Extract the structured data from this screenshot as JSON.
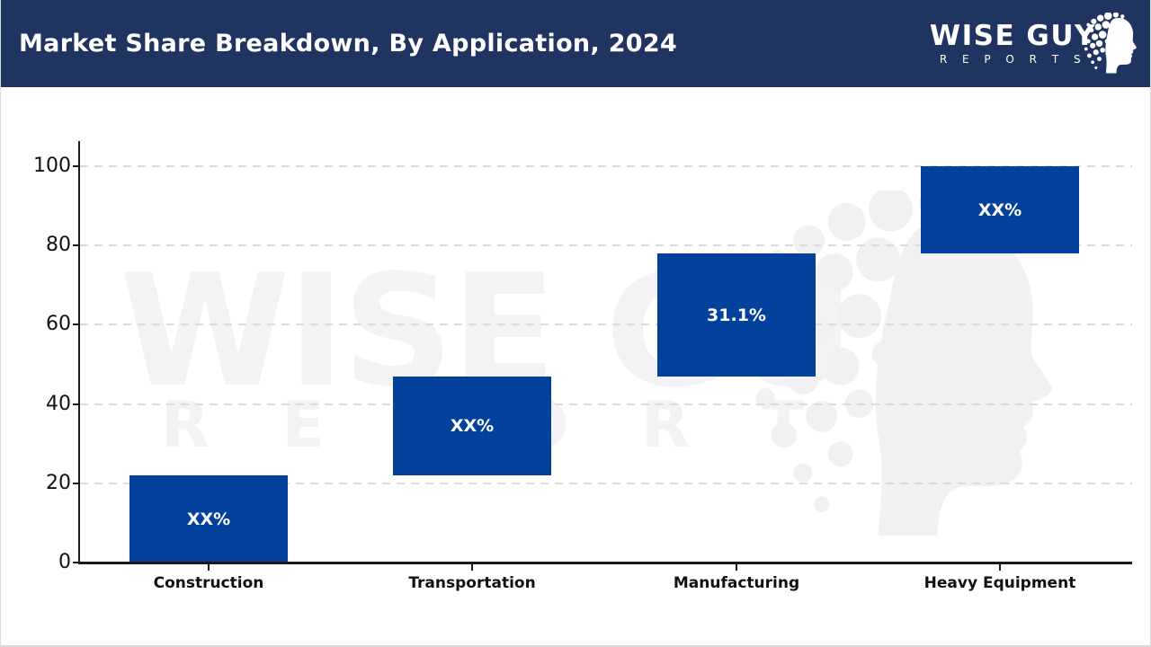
{
  "header": {
    "title": "Market Share Breakdown, By Application, 2024",
    "bg_color": "#1f3461",
    "brand": {
      "line1": "WISE GUY",
      "line2": "R E P O R T S"
    }
  },
  "watermark": {
    "line1": "WISE GU",
    "line2": "R E P O R T S"
  },
  "chart_data": {
    "type": "bar",
    "subtype": "waterfall",
    "title": "Market Share Breakdown, By Application, 2024",
    "categories": [
      "Construction",
      "Transportation",
      "Manufacturing",
      "Heavy Equipment"
    ],
    "segments": [
      {
        "category": "Construction",
        "start": 0,
        "end": 22,
        "value": 22,
        "label": "XX%"
      },
      {
        "category": "Transportation",
        "start": 22,
        "end": 46.9,
        "value": 24.9,
        "label": "XX%"
      },
      {
        "category": "Manufacturing",
        "start": 46.9,
        "end": 78,
        "value": 31.1,
        "label": "31.1%"
      },
      {
        "category": "Heavy Equipment",
        "start": 78,
        "end": 100,
        "value": 22,
        "label": "XX%"
      }
    ],
    "xlabel": "",
    "ylabel": "",
    "ylim": [
      0,
      100
    ],
    "yticks": [
      0,
      20,
      40,
      60,
      80,
      100
    ],
    "grid": "horizontal-dashed",
    "legend": "none",
    "bar_color": "#04419c",
    "bar_label_color": "#ffffff",
    "axis_color": "#1a1a1a",
    "gridline_color": "#dcdcdc"
  }
}
